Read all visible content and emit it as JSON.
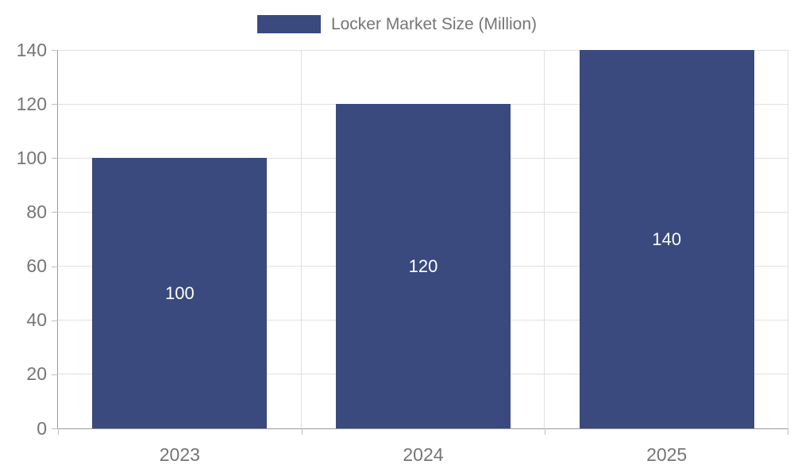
{
  "chart_data": {
    "type": "bar",
    "title": "Locker Market Size (Million)",
    "categories": [
      "2023",
      "2024",
      "2025"
    ],
    "series": [
      {
        "name": "Locker Market Size (Million)",
        "values": [
          100,
          120,
          140
        ]
      }
    ],
    "data_labels": [
      "100",
      "120",
      "140"
    ],
    "xlabel": "",
    "ylabel": "",
    "ylim": [
      0,
      140
    ],
    "y_ticks": [
      0,
      20,
      40,
      60,
      80,
      100,
      120,
      140
    ],
    "y_tick_labels": [
      "0",
      "20",
      "40",
      "60",
      "80",
      "100",
      "120",
      "140"
    ],
    "grid": true,
    "legend_position": "top-center",
    "colors": {
      "bar": "#3A4A7E",
      "data_label": "#FFFFFF",
      "axis_text": "#757575",
      "legend_text": "#757575",
      "grid_line": "#E0E0E0",
      "axis_line": "#999999",
      "tick_line": "#B9BEC9",
      "background": "#FFFFFF"
    }
  }
}
